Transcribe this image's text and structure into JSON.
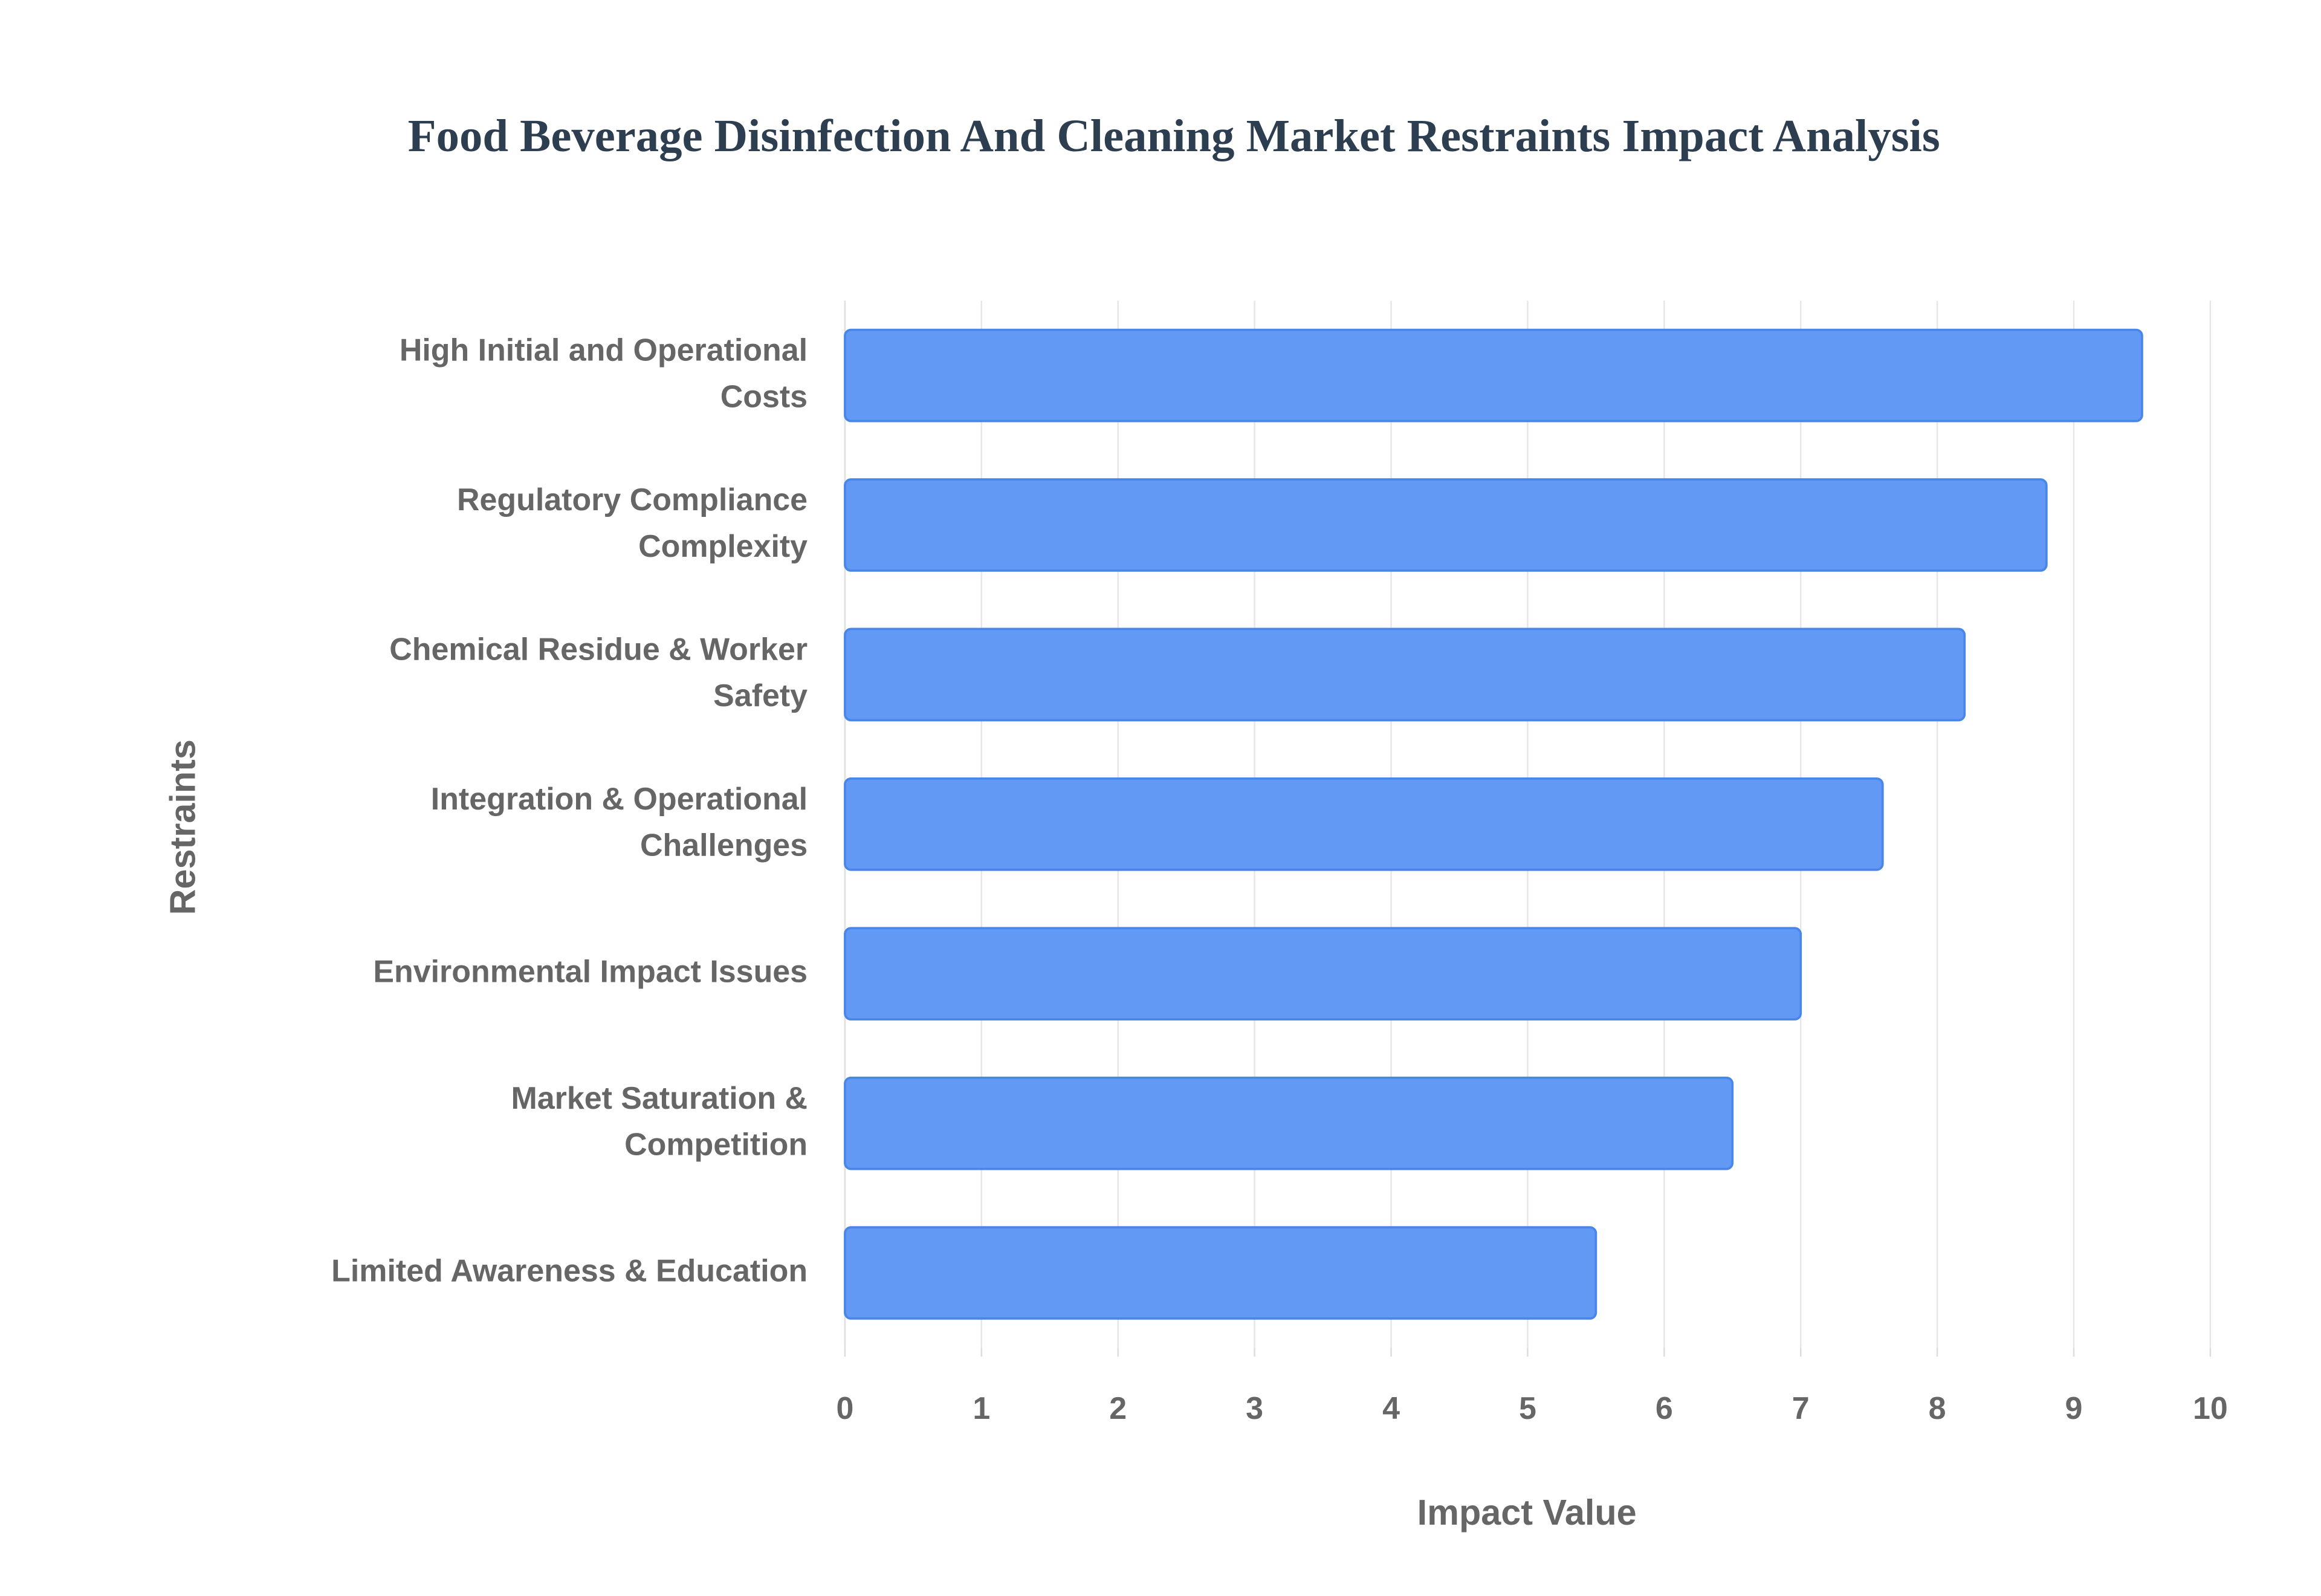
{
  "chart_data": {
    "type": "bar",
    "orientation": "horizontal",
    "title": "Food Beverage Disinfection And Cleaning Market Restraints Impact Analysis",
    "x_label": "Impact Value",
    "y_label": "Restraints",
    "categories": [
      "High Initial and Operational Costs",
      "Regulatory Compliance Complexity",
      "Chemical Residue & Worker Safety",
      "Integration & Operational Challenges",
      "Environmental Impact Issues",
      "Market Saturation & Competition",
      "Limited Awareness & Education"
    ],
    "values": [
      9.5,
      8.8,
      8.2,
      7.6,
      7.0,
      6.5,
      5.5
    ],
    "color": "#6199f5",
    "xlim": [
      0,
      10
    ],
    "xticks": [
      0,
      1,
      2,
      3,
      4,
      5,
      6,
      7,
      8,
      9,
      10
    ],
    "grid": true
  }
}
